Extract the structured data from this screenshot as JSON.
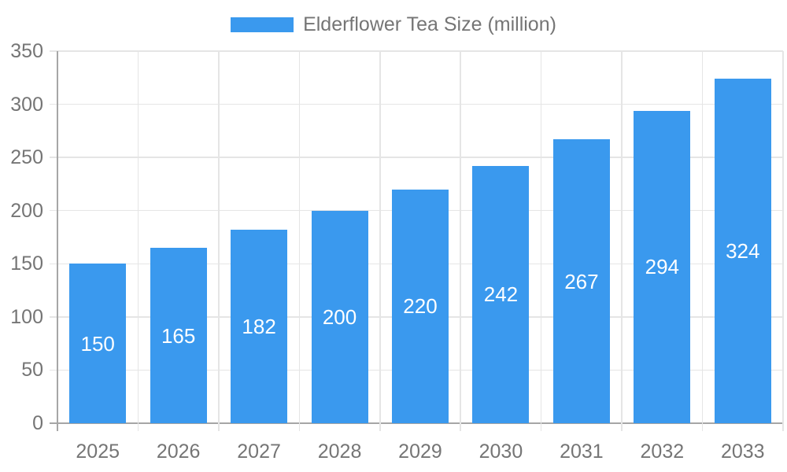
{
  "chart_data": {
    "type": "bar",
    "title": "Elderflower Tea Size (million)",
    "categories": [
      "2025",
      "2026",
      "2027",
      "2028",
      "2029",
      "2030",
      "2031",
      "2032",
      "2033"
    ],
    "values": [
      150,
      165,
      182,
      200,
      220,
      242,
      267,
      294,
      324
    ],
    "xlabel": "",
    "ylabel": "",
    "ylim": [
      0,
      350
    ],
    "ytick_step": 50,
    "grid": true,
    "legend_position": "top-center",
    "value_labels": "inside-center",
    "colors": {
      "bar": "#3A99EE",
      "value_label": "#ffffff",
      "axis_label": "#757575",
      "grid_line": "#e5e5e5",
      "axis_line": "#a6a6a6"
    }
  }
}
